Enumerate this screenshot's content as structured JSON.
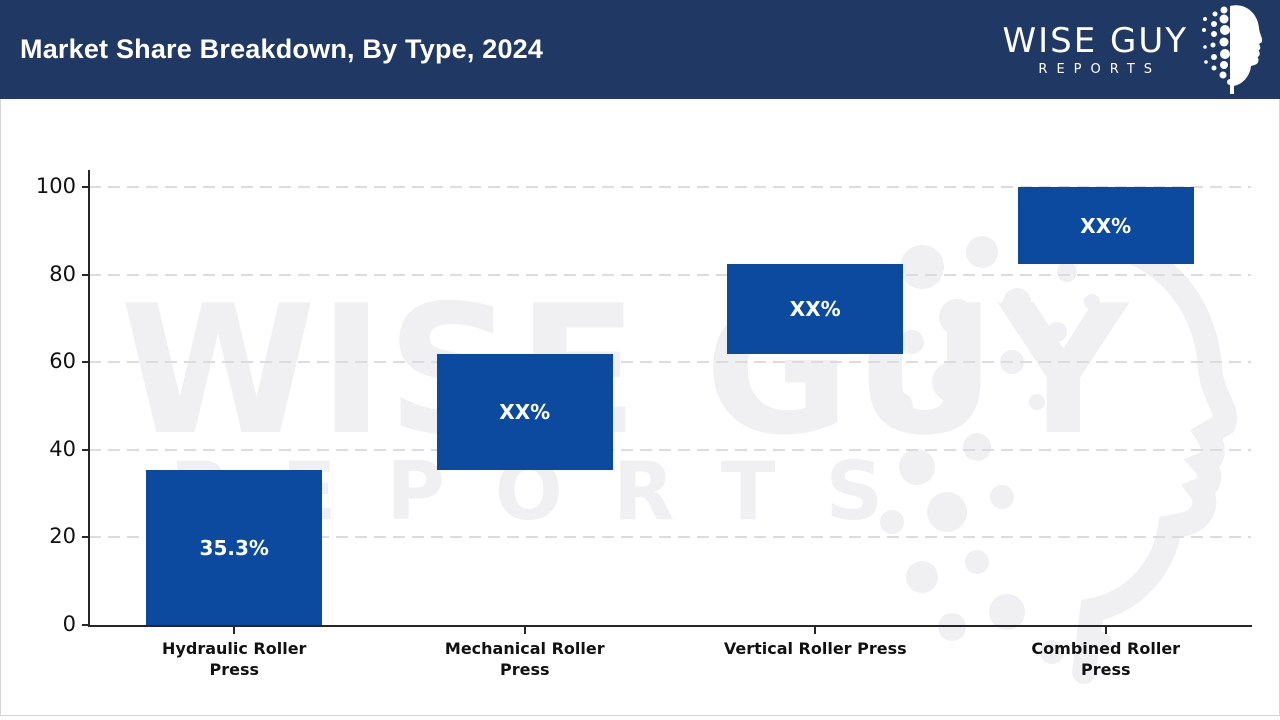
{
  "header": {
    "title": "Market Share Breakdown, By Type, 2024",
    "logo": {
      "brand_line1": "WISE GUY",
      "brand_line2": "REPORTS",
      "icon": "wiseguy-face-icon"
    }
  },
  "watermark": {
    "line1": "WISE GUY",
    "line2": "REPORTS",
    "icon": "wiseguy-face-watermark-icon"
  },
  "chart_data": {
    "type": "bar",
    "subtype": "floating-waterfall",
    "title": "Market Share Breakdown, By Type, 2024",
    "categories": [
      "Hydraulic Roller Press",
      "Mechanical Roller Press",
      "Vertical Roller Press",
      "Combined Roller Press"
    ],
    "series": [
      {
        "name": "Market share (%)",
        "segments": [
          {
            "start": 0,
            "end": 35.3,
            "label": "35.3%"
          },
          {
            "start": 35.3,
            "end": 61.8,
            "label": "XX%"
          },
          {
            "start": 61.8,
            "end": 82.4,
            "label": "XX%"
          },
          {
            "start": 82.4,
            "end": 100,
            "label": "XX%"
          }
        ]
      }
    ],
    "xlabel": "",
    "ylabel": "",
    "ylim": [
      0,
      100
    ],
    "yticks": [
      0,
      20,
      40,
      60,
      80,
      100
    ],
    "grid": "horizontal-dashed",
    "legend": "none",
    "bar_color": "#0b4a9e",
    "bar_label_color": "#ffffff"
  },
  "colors": {
    "header_bg": "#203864",
    "bar": "#0b4a9e",
    "axis": "#262626",
    "gridline": "#dcdcdc",
    "watermark": "#f0f0f2",
    "page_border": "#d6d6d6"
  }
}
